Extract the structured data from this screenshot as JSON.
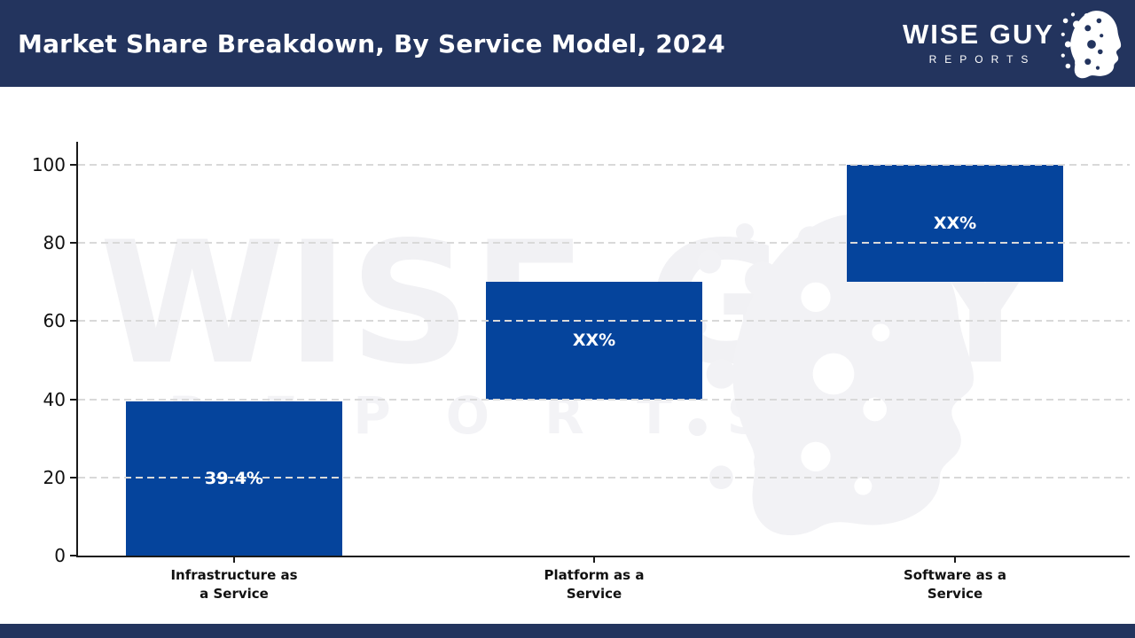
{
  "header": {
    "title": "Market Share Breakdown, By Service Model, 2024",
    "logo": {
      "line1": "WISE GUY",
      "line2": "REPORTS"
    }
  },
  "watermark": {
    "line1": "WISE GUY",
    "line2": "REPORTS"
  },
  "footer": {},
  "colors": {
    "header_bg": "#23345e",
    "footer_bg": "#23345e",
    "bar": "#05449c",
    "grid": "#d9d9d9",
    "axis": "#1a1a1a",
    "bar_label": "#ffffff",
    "watermark": "#f1f1f4"
  },
  "chart_data": {
    "type": "bar",
    "subtype": "floating-waterfall",
    "title": "Market Share Breakdown, By Service Model, 2024",
    "xlabel": "",
    "ylabel": "",
    "ylim": [
      0,
      105
    ],
    "yticks": [
      0,
      20,
      40,
      60,
      80,
      100
    ],
    "grid": "horizontal-dashed",
    "legend": "none",
    "categories": [
      "Infrastructure as\na Service",
      "Platform as a\nService",
      "Software as a\nService"
    ],
    "bars": [
      {
        "category": "Infrastructure as a Service",
        "start": 0,
        "end": 39.4,
        "label": "39.4%"
      },
      {
        "category": "Platform as a Service",
        "start": 40,
        "end": 70,
        "label": "XX%"
      },
      {
        "category": "Software as a Service",
        "start": 70,
        "end": 100,
        "label": "XX%"
      }
    ]
  }
}
